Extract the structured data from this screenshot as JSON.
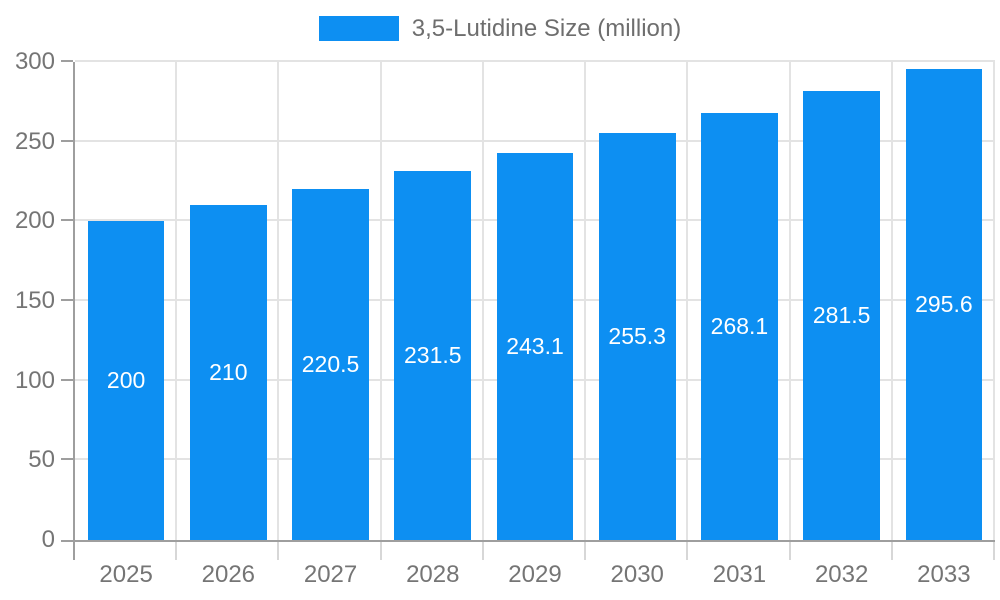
{
  "chart_data": {
    "type": "bar",
    "title": "3,5-Lutidine Size (million)",
    "legend_label": "3,5-Lutidine Size (million)",
    "legend_position": "top-center",
    "categories": [
      "2025",
      "2026",
      "2027",
      "2028",
      "2029",
      "2030",
      "2031",
      "2032",
      "2033"
    ],
    "series": [
      {
        "name": "3,5-Lutidine Size (million)",
        "values": [
          200,
          210,
          220.5,
          231.5,
          243.1,
          255.3,
          268.1,
          281.5,
          295.6
        ],
        "data_labels": [
          "200",
          "210",
          "220.5",
          "231.5",
          "243.1",
          "255.3",
          "268.1",
          "281.5",
          "295.6"
        ]
      }
    ],
    "xlabel": "",
    "ylabel": "",
    "ylim": [
      0,
      300
    ],
    "yticks": [
      0,
      50,
      100,
      150,
      200,
      250,
      300
    ],
    "grid": true,
    "data_label_position": "inside-center",
    "colors": {
      "bar": "#0d8ff2",
      "bar_label_text": "#ffffff",
      "axis_line": "#9e9e9e",
      "gridline": "#e3e3e3",
      "tick_text": "#757575",
      "legend_text": "#6e6e6e",
      "background": "#ffffff"
    }
  }
}
